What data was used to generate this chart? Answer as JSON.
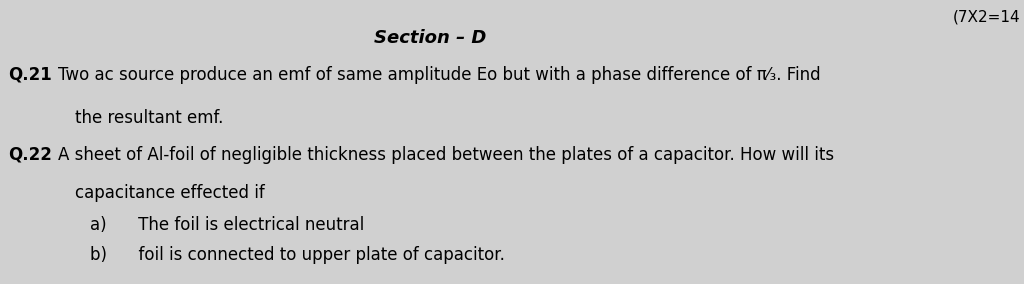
{
  "bg_color": "#d0d0d0",
  "title": "Section – D",
  "marks": "(7X2=14",
  "q21_label": "Q.21",
  "q21_text": "Two ac source produce an emf of same amplitude Eo but with a phase difference of π⁄₃. Find",
  "q21_line2": "the resultant emf.",
  "q22_label": "Q.22",
  "q22_text": "A sheet of Al-foil of negligible thickness placed between the plates of a capacitor. How will its",
  "q22_line2": "capacitance effected if",
  "q22_a": "a)      The foil is electrical neutral",
  "q22_b": "b)      foil is connected to upper plate of capacitor.",
  "font_size_title": 13,
  "font_size_marks": 11,
  "font_size_body": 12
}
